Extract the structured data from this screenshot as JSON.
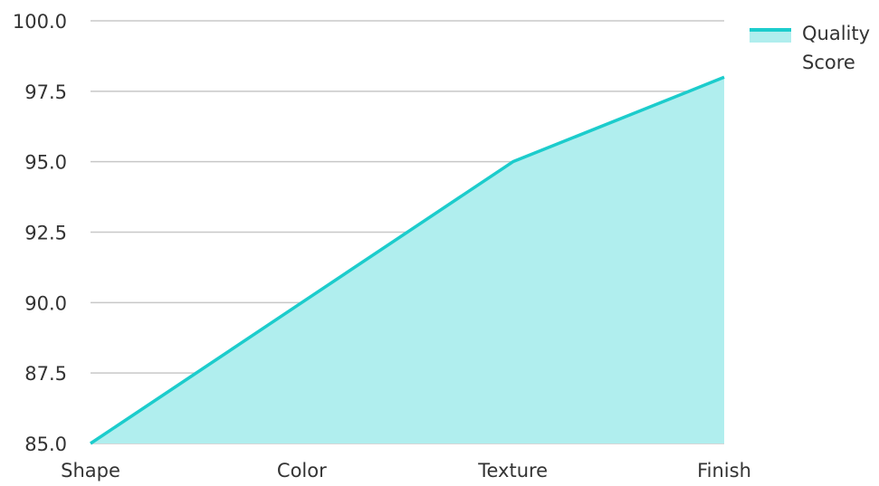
{
  "chart_data": {
    "type": "area",
    "categories": [
      "Shape",
      "Color",
      "Texture",
      "Finish"
    ],
    "series": [
      {
        "name": "Quality Score",
        "values": [
          85.0,
          90.0,
          95.0,
          98.0
        ],
        "line_color": "#1ccccc",
        "fill_color": "#b0eeee"
      }
    ],
    "y_ticks": [
      "85.0",
      "87.5",
      "90.0",
      "92.5",
      "95.0",
      "97.5",
      "100.0"
    ],
    "ylim": [
      85.0,
      100.0
    ],
    "grid": true,
    "grid_color": "#c8c8c8",
    "legend": {
      "position": "top-right",
      "lines": [
        "Quality",
        "Score"
      ]
    },
    "title": "",
    "xlabel": "",
    "ylabel": ""
  }
}
